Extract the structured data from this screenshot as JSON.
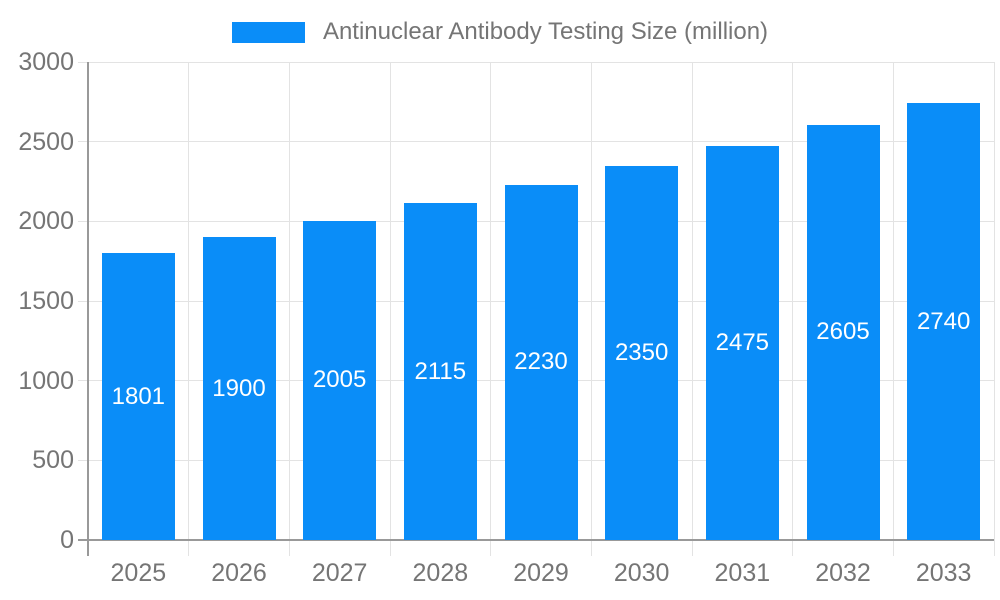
{
  "chart_data": {
    "type": "bar",
    "title": "Antinuclear Antibody Testing Size (million)",
    "legend": "Antinuclear Antibody Testing Size (million)",
    "series_name": "Antinuclear Antibody Testing Size (million)",
    "categories": [
      "2025",
      "2026",
      "2027",
      "2028",
      "2029",
      "2030",
      "2031",
      "2032",
      "2033"
    ],
    "values": [
      1801,
      1900,
      2005,
      2115,
      2230,
      2350,
      2475,
      2605,
      2740
    ],
    "xlabel": "",
    "ylabel": "",
    "ylim": [
      0,
      3000
    ],
    "yticks": [
      0,
      500,
      1000,
      1500,
      2000,
      2500,
      3000
    ],
    "grid": true,
    "legend_position": "top-center",
    "bar_labels_inside": true,
    "colors": {
      "bar": "#0A8DF8",
      "bar_label": "#FFFFFF",
      "axis": "#999999",
      "grid": "#E3E3E3",
      "tick_label": "#757575",
      "background": "#FFFFFF"
    }
  }
}
